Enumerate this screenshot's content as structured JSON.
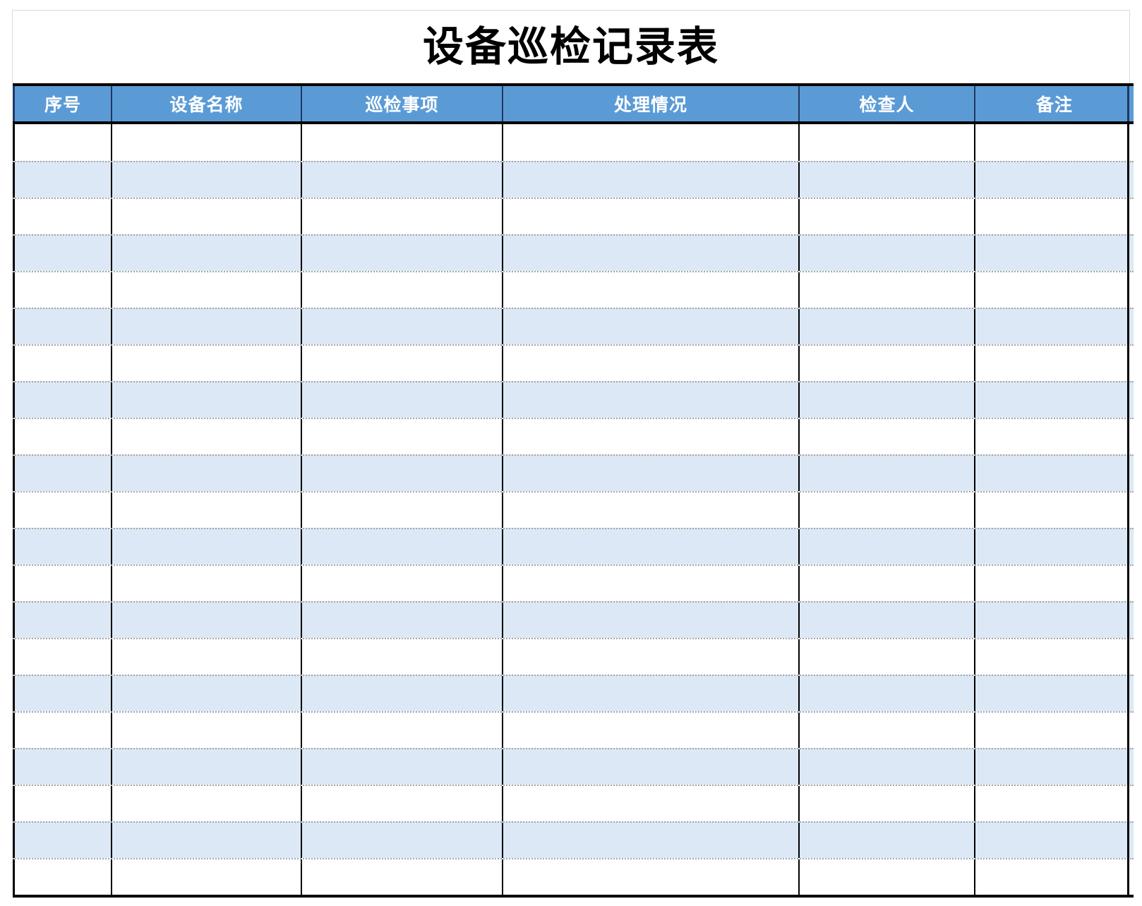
{
  "page": {
    "title": "设备巡检记录表"
  },
  "table": {
    "headers": [
      "序号",
      "设备名称",
      "巡检事项",
      "处理情况",
      "检查人",
      "备注"
    ],
    "header_keys": [
      "serial-number",
      "equipment-name",
      "inspection-items",
      "handling-status",
      "inspector",
      "remarks"
    ],
    "row_count": 21,
    "rows": [
      [
        "",
        "",
        "",
        "",
        "",
        ""
      ],
      [
        "",
        "",
        "",
        "",
        "",
        ""
      ],
      [
        "",
        "",
        "",
        "",
        "",
        ""
      ],
      [
        "",
        "",
        "",
        "",
        "",
        ""
      ],
      [
        "",
        "",
        "",
        "",
        "",
        ""
      ],
      [
        "",
        "",
        "",
        "",
        "",
        ""
      ],
      [
        "",
        "",
        "",
        "",
        "",
        ""
      ],
      [
        "",
        "",
        "",
        "",
        "",
        ""
      ],
      [
        "",
        "",
        "",
        "",
        "",
        ""
      ],
      [
        "",
        "",
        "",
        "",
        "",
        ""
      ],
      [
        "",
        "",
        "",
        "",
        "",
        ""
      ],
      [
        "",
        "",
        "",
        "",
        "",
        ""
      ],
      [
        "",
        "",
        "",
        "",
        "",
        ""
      ],
      [
        "",
        "",
        "",
        "",
        "",
        ""
      ],
      [
        "",
        "",
        "",
        "",
        "",
        ""
      ],
      [
        "",
        "",
        "",
        "",
        "",
        ""
      ],
      [
        "",
        "",
        "",
        "",
        "",
        ""
      ],
      [
        "",
        "",
        "",
        "",
        "",
        ""
      ],
      [
        "",
        "",
        "",
        "",
        "",
        ""
      ],
      [
        "",
        "",
        "",
        "",
        "",
        ""
      ],
      [
        "",
        "",
        "",
        "",
        "",
        ""
      ]
    ]
  },
  "colors": {
    "header_bg": "#5B9BD5",
    "header_text": "#FFFFFF",
    "header_border": "#1F3864",
    "grid_border": "#000000",
    "stripe_fill": "#DCE8F5",
    "dotted_separator": "#A6A6A6",
    "title_box_border": "#D9D9D9",
    "title_text": "#000000"
  }
}
